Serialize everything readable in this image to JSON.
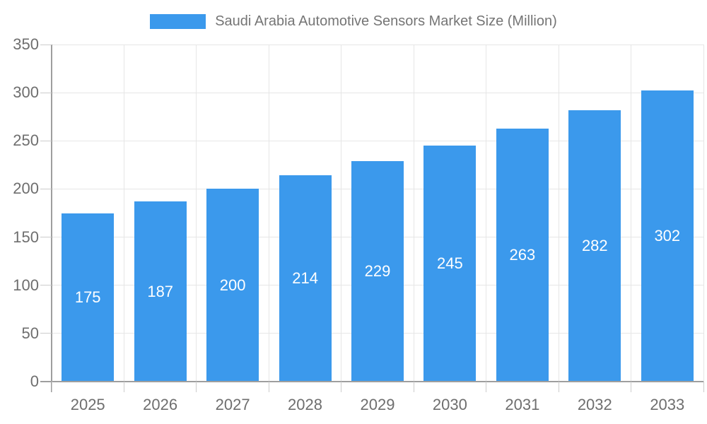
{
  "chart_data": {
    "type": "bar",
    "title": "Saudi Arabia Automotive Sensors Market Size (Million)",
    "legend": [
      {
        "label": "Saudi Arabia Automotive Sensors Market Size (Million)",
        "color": "#3b99ec"
      }
    ],
    "legend_position": "top-center",
    "categories": [
      "2025",
      "2026",
      "2027",
      "2028",
      "2029",
      "2030",
      "2031",
      "2032",
      "2033"
    ],
    "values": [
      175,
      187,
      200,
      214,
      229,
      245,
      263,
      282,
      302
    ],
    "value_labels_position": "inside-center",
    "xlabel": "",
    "ylabel": "",
    "ylim": [
      0,
      350
    ],
    "y_ticks": [
      0,
      50,
      100,
      150,
      200,
      250,
      300,
      350
    ],
    "grid": "on",
    "colors": {
      "bar": "#3b99ec",
      "gridline": "#e6e6e6",
      "axis_line": "#9e9e9e",
      "tick": "#cccccc",
      "axis_text": "#6e6e6e",
      "legend_text": "#757575",
      "value_label_text": "#ffffff",
      "background": "#ffffff"
    }
  }
}
